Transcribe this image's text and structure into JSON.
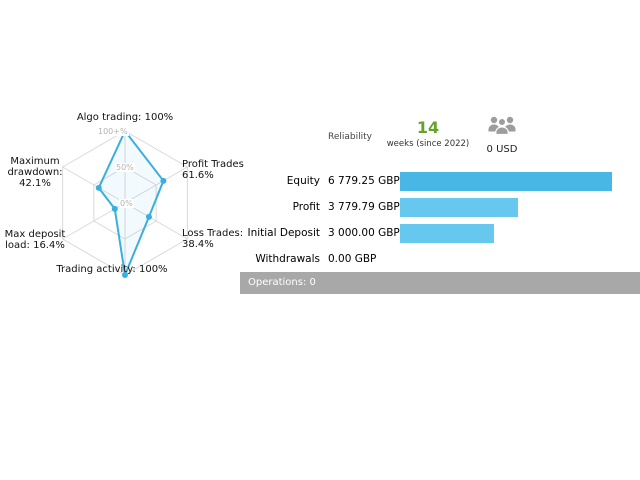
{
  "colors": {
    "radar_blue": "#3aaede",
    "bar_blue": "#67c8ef",
    "equity_bar_blue": "#49b7e6",
    "accent_green": "#67a22e",
    "operations_gray": "#a8a8a8",
    "grid_gray": "#d9d9d9",
    "bars": [
      "#49b7e6",
      "#67c8ef",
      "#67c8ef",
      "#67c8ef"
    ]
  },
  "chart_data": [
    {
      "type": "radar",
      "axes": [
        "Algo trading",
        "Profit Trades",
        "Loss Trades",
        "Trading activity",
        "Max deposit load",
        "Maximum drawdown"
      ],
      "values": [
        100,
        61.6,
        38.4,
        100,
        16.4,
        42.1
      ],
      "axis_labels": [
        "Algo trading: 100%",
        "Profit Trades 61.6%",
        "Loss Trades: 38.4%",
        "Trading activity: 100%",
        "Max deposit load: 16.4%",
        "Maximum drawdown: 42.1%"
      ],
      "ring_labels": [
        "100+%",
        "50%",
        "0%"
      ],
      "range": [
        0,
        100
      ],
      "grid": true,
      "legend": "none"
    },
    {
      "type": "bar",
      "orientation": "horizontal",
      "categories": [
        "Equity",
        "Profit",
        "Initial Deposit",
        "Withdrawals"
      ],
      "values": [
        6779.25,
        3779.79,
        3000.0,
        0.0
      ],
      "value_labels": [
        "6 779.25 GBP",
        "3 779.79 GBP",
        "3 000.00 GBP",
        "0.00 GBP"
      ],
      "xlim": [
        0,
        6779.25
      ],
      "unit": "GBP",
      "grid": false,
      "legend": "none"
    }
  ],
  "stats": {
    "reliability_label": "Reliability",
    "weeks_value": "14",
    "weeks_caption": "weeks (since 2022)",
    "funds_value": "0 USD",
    "operations_label": "Operations: 0"
  }
}
